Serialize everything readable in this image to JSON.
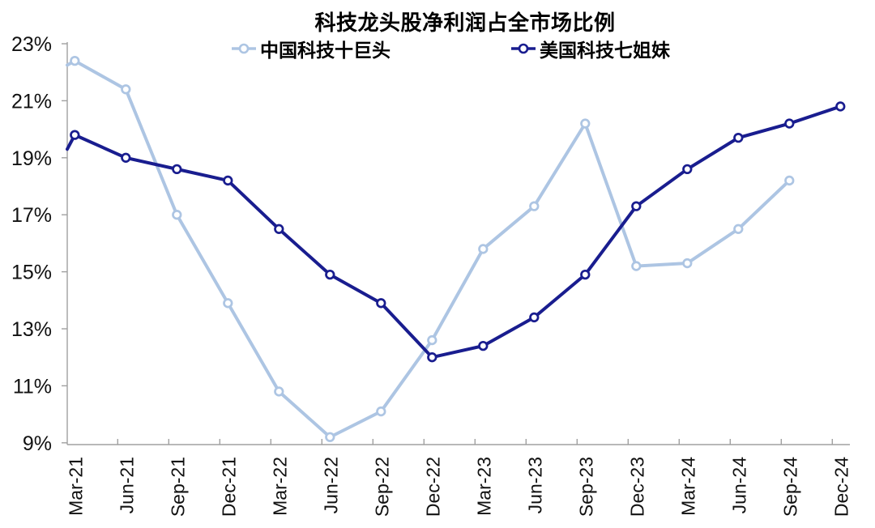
{
  "chart_data": {
    "type": "line",
    "title": "科技龙头股净利润占全市场比例",
    "categories": [
      "Mar-21",
      "Jun-21",
      "Sep-21",
      "Dec-21",
      "Mar-22",
      "Jun-22",
      "Sep-22",
      "Dec-22",
      "Mar-23",
      "Jun-23",
      "Sep-23",
      "Dec-23",
      "Mar-24",
      "Jun-24",
      "Sep-24",
      "Dec-24"
    ],
    "y_tick_labels": [
      "23%",
      "21%",
      "19%",
      "17%",
      "15%",
      "13%",
      "11%",
      "9%"
    ],
    "ylim": [
      9,
      23
    ],
    "y_unit": "%",
    "grid": false,
    "legend_position": "top",
    "series": [
      {
        "name": "中国科技十巨头",
        "color": "#adc5e3",
        "values": [
          22.4,
          21.4,
          17.0,
          13.9,
          10.8,
          9.2,
          10.1,
          12.6,
          15.8,
          17.3,
          20.2,
          15.2,
          15.3,
          16.5,
          18.2
        ],
        "left_edge_clip_value": 22.25
      },
      {
        "name": "美国科技七姐妹",
        "color": "#191d8f",
        "values": [
          19.8,
          19.0,
          18.6,
          18.2,
          16.5,
          14.9,
          13.9,
          12.0,
          12.4,
          13.4,
          14.9,
          17.3,
          18.6,
          19.7,
          20.2,
          20.8
        ],
        "left_edge_clip_value": 19.3
      }
    ]
  },
  "colors": {
    "axis": "#a0a0a0",
    "tick_text": "#111111",
    "marker_fill": "#ffffff",
    "background": "#ffffff"
  }
}
